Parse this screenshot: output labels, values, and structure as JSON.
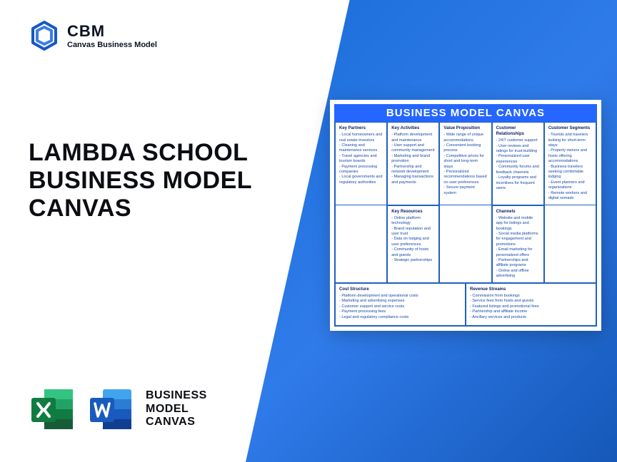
{
  "logo": {
    "abbr": "CBM",
    "full": "Canvas Business Model"
  },
  "title_line1": "LAMBDA SCHOOL",
  "title_line2": "BUSINESS MODEL",
  "title_line3": "CANVAS",
  "apps_label_line1": "BUSINESS",
  "apps_label_line2": "MODEL",
  "apps_label_line3": "CANVAS",
  "canvas": {
    "header": "BUSINESS MODEL CANVAS",
    "key_partners": {
      "title": "Key Partners",
      "items": [
        "Local homeowners and real estate investors",
        "Cleaning and maintenance services",
        "Travel agencies and tourism boards",
        "Payment processing companies",
        "Local governments and regulatory authorities"
      ]
    },
    "key_activities": {
      "title": "Key Activities",
      "items": [
        "Platform development and maintenance",
        "User support and community management",
        "Marketing and brand promotion",
        "Partnership and network development",
        "Managing transactions and payments"
      ]
    },
    "value_proposition": {
      "title": "Value Proposition",
      "items": [
        "Wide range of unique accommodations",
        "Convenient booking process",
        "Competitive prices for short and long-term stays",
        "Personalized recommendations based on user preferences",
        "Secure payment system"
      ]
    },
    "customer_relationships": {
      "title": "Customer Relationships",
      "items": [
        "24/7 customer support",
        "User reviews and ratings for trust-building",
        "Personalized user experiences",
        "Community forums and feedback channels",
        "Loyalty programs and incentives for frequent users"
      ]
    },
    "customer_segments": {
      "title": "Customer Segments",
      "items": [
        "Tourists and travelers looking for short-term stays",
        "Property owners and hosts offering accommodations",
        "Business travelers seeking comfortable lodging",
        "Event planners and organizations",
        "Remote workers and digital nomads"
      ]
    },
    "key_resources": {
      "title": "Key Resources",
      "items": [
        "Online platform technology",
        "Brand reputation and user trust",
        "Data on lodging and user preferences",
        "Community of hosts and guests",
        "Strategic partnerships"
      ]
    },
    "channels": {
      "title": "Channels",
      "items": [
        "Website and mobile app for listings and bookings",
        "Social media platforms for engagement and promotions",
        "Email marketing for personalized offers",
        "Partnerships and affiliate programs",
        "Online and offline advertising"
      ]
    },
    "cost_structure": {
      "title": "Cost Structure",
      "items": [
        "Platform development and operational costs",
        "Marketing and advertising expenses",
        "Customer support and service costs",
        "Payment processing fees",
        "Legal and regulatory compliance costs"
      ]
    },
    "revenue_streams": {
      "title": "Revenue Streams",
      "items": [
        "Commission from bookings",
        "Service fees from hosts and guests",
        "Featured listings and promotional fees",
        "Partnership and affiliate income",
        "Ancillary services and products"
      ]
    }
  },
  "colors": {
    "brand_blue": "#2566ff",
    "excel_green": "#107c41",
    "word_blue": "#2b579a"
  }
}
